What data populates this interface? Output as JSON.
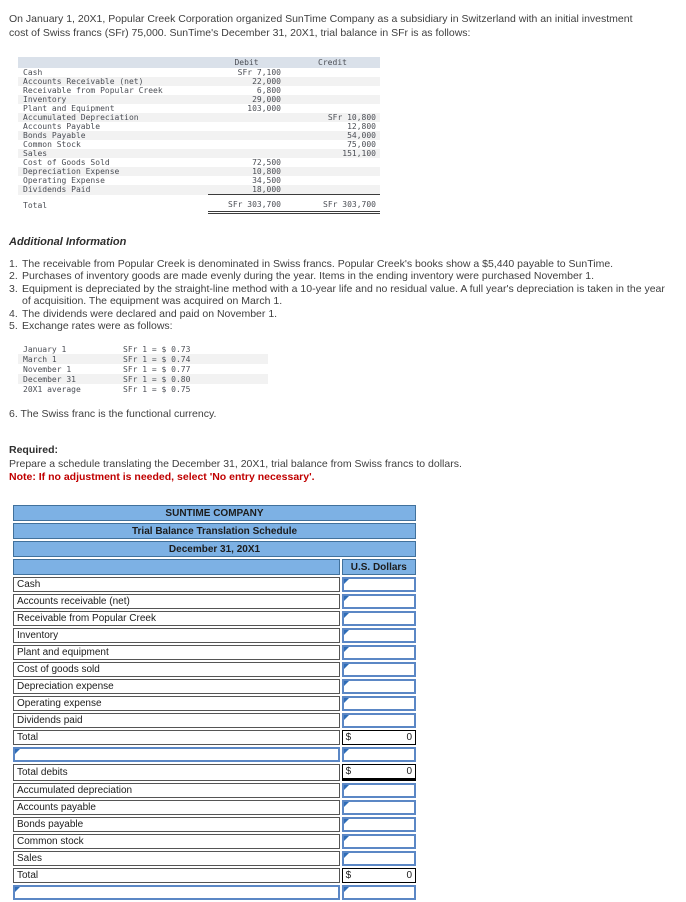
{
  "intro": "On January 1, 20X1, Popular Creek Corporation organized SunTime Company as a subsidiary in Switzerland with an initial investment cost of Swiss francs (SFr) 75,000. SunTime's December 31, 20X1, trial balance in SFr is as follows:",
  "trial_balance": {
    "debit_header": "Debit",
    "credit_header": "Credit",
    "rows": [
      {
        "account": "Cash",
        "debit": "SFr 7,100",
        "credit": ""
      },
      {
        "account": "Accounts Receivable (net)",
        "debit": "22,000",
        "credit": ""
      },
      {
        "account": "Receivable from Popular Creek",
        "debit": "6,800",
        "credit": ""
      },
      {
        "account": "Inventory",
        "debit": "29,000",
        "credit": ""
      },
      {
        "account": "Plant and Equipment",
        "debit": "103,000",
        "credit": ""
      },
      {
        "account": "Accumulated Depreciation",
        "debit": "",
        "credit": "SFr 10,800"
      },
      {
        "account": "Accounts Payable",
        "debit": "",
        "credit": "12,800"
      },
      {
        "account": "Bonds Payable",
        "debit": "",
        "credit": "54,000"
      },
      {
        "account": "Common Stock",
        "debit": "",
        "credit": "75,000"
      },
      {
        "account": "Sales",
        "debit": "",
        "credit": "151,100"
      },
      {
        "account": "Cost of Goods Sold",
        "debit": "72,500",
        "credit": ""
      },
      {
        "account": "Depreciation Expense",
        "debit": "10,800",
        "credit": ""
      },
      {
        "account": "Operating Expense",
        "debit": "34,500",
        "credit": ""
      },
      {
        "account": "Dividends Paid",
        "debit": "18,000",
        "credit": ""
      }
    ],
    "total": {
      "account": "Total",
      "debit": "SFr 303,700",
      "credit": "SFr 303,700"
    }
  },
  "additional_info_heading": "Additional Information",
  "notes": [
    {
      "num": "1.",
      "text": "The receivable from Popular Creek is denominated in Swiss francs. Popular Creek's books show a $5,440 payable to SunTime."
    },
    {
      "num": "2.",
      "text": "Purchases of inventory goods are made evenly during the year. Items in the ending inventory were purchased November 1."
    },
    {
      "num": "3.",
      "text": "Equipment is depreciated by the straight-line method with a 10-year life and no residual value. A full year's depreciation is taken in the year of acquisition. The equipment was acquired on March 1."
    },
    {
      "num": "4.",
      "text": "The dividends were declared and paid on November 1."
    },
    {
      "num": "5.",
      "text": "Exchange rates were as follows:"
    }
  ],
  "exchange_rates": [
    {
      "date": "January 1",
      "rate": "SFr 1 = $ 0.73"
    },
    {
      "date": "March 1",
      "rate": "SFr 1 = $ 0.74"
    },
    {
      "date": "November 1",
      "rate": "SFr 1 = $ 0.77"
    },
    {
      "date": "December 31",
      "rate": "SFr 1 = $ 0.80"
    },
    {
      "date": "20X1 average",
      "rate": "SFr 1 = $ 0.75"
    }
  ],
  "functional_currency_note": "6. The Swiss franc is the functional currency.",
  "required": {
    "heading": "Required:",
    "instruction": "Prepare a schedule translating the December 31, 20X1, trial balance from Swiss francs to dollars.",
    "note": "Note: If no adjustment is needed, select 'No entry necessary'."
  },
  "schedule": {
    "title_company": "SUNTIME COMPANY",
    "title_schedule": "Trial Balance Translation Schedule",
    "title_date": "December 31, 20X1",
    "column_header": "U.S. Dollars",
    "currency_symbol": "$",
    "rows": [
      {
        "label": "Cash",
        "type": "input"
      },
      {
        "label": "Accounts receivable (net)",
        "type": "input"
      },
      {
        "label": "Receivable from Popular Creek",
        "type": "input"
      },
      {
        "label": "Inventory",
        "type": "input"
      },
      {
        "label": "Plant and equipment",
        "type": "input"
      },
      {
        "label": "Cost of goods sold",
        "type": "input"
      },
      {
        "label": "Depreciation expense",
        "type": "input"
      },
      {
        "label": "Operating expense",
        "type": "input"
      },
      {
        "label": "Dividends paid",
        "type": "input"
      },
      {
        "label": "Total",
        "type": "total",
        "amount": "0"
      },
      {
        "label": "",
        "type": "blank_input"
      },
      {
        "label": "Total debits",
        "type": "total_heavy",
        "amount": "0"
      },
      {
        "label": "Accumulated depreciation",
        "type": "input"
      },
      {
        "label": "Accounts payable",
        "type": "input"
      },
      {
        "label": "Bonds payable",
        "type": "input"
      },
      {
        "label": "Common stock",
        "type": "input"
      },
      {
        "label": "Sales",
        "type": "input"
      },
      {
        "label": "Total",
        "type": "total",
        "amount": "0"
      },
      {
        "label": "",
        "type": "blank_input"
      }
    ]
  }
}
